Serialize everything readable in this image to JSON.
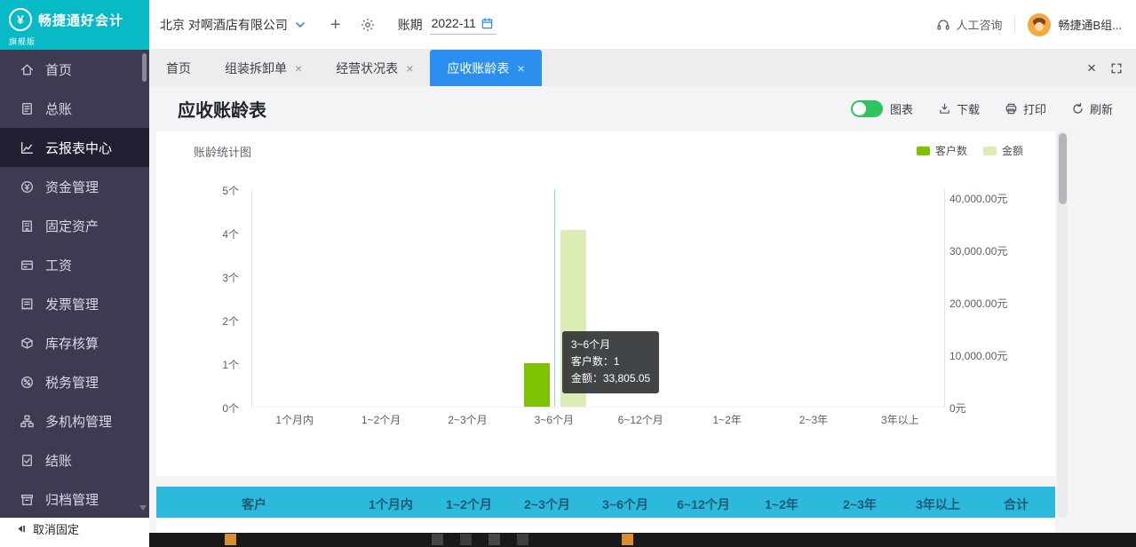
{
  "icons": {
    "close": "×",
    "plus_sign": "+",
    "yuan": "¥"
  },
  "colors": {
    "brand_teal": "#08b9c6",
    "accent_blue": "#2b8ff0",
    "toggle_green": "#2ec45e",
    "table_header_cyan": "#2db9dc",
    "sidebar_bg": "#3d3b52"
  },
  "header": {
    "logo_title": "畅捷通好会计",
    "logo_badge": "旗舰版",
    "company": "北京 对啊酒店有限公司",
    "period_label": "账期",
    "period_value": "2022-11",
    "support_label": "人工咨询",
    "user_name": "畅捷通B组..."
  },
  "sidebar": {
    "items": [
      {
        "label": "首页",
        "icon": "home-icon"
      },
      {
        "label": "总账",
        "icon": "ledger-icon"
      },
      {
        "label": "云报表中心",
        "icon": "cloud-report-icon",
        "active": true
      },
      {
        "label": "资金管理",
        "icon": "funds-icon"
      },
      {
        "label": "固定资产",
        "icon": "fixed-asset-icon"
      },
      {
        "label": "工资",
        "icon": "salary-icon"
      },
      {
        "label": "发票管理",
        "icon": "invoice-icon"
      },
      {
        "label": "库存核算",
        "icon": "inventory-icon"
      },
      {
        "label": "税务管理",
        "icon": "tax-icon"
      },
      {
        "label": "多机构管理",
        "icon": "multi-org-icon"
      },
      {
        "label": "结账",
        "icon": "closing-icon"
      },
      {
        "label": "归档管理",
        "icon": "archive-icon"
      }
    ],
    "unpin_label": "取消固定"
  },
  "tabs": [
    {
      "label": "首页",
      "closable": false,
      "active": false
    },
    {
      "label": "组装拆卸单",
      "closable": true,
      "active": false
    },
    {
      "label": "经营状况表",
      "closable": true,
      "active": false
    },
    {
      "label": "应收账龄表",
      "closable": true,
      "active": true
    }
  ],
  "toolbar": {
    "page_title": "应收账龄表",
    "view_toggle_label": "图表",
    "download_label": "下载",
    "print_label": "打印",
    "refresh_label": "刷新"
  },
  "chart_data": {
    "type": "bar",
    "title": "账龄统计图",
    "categories": [
      "1个月内",
      "1~2个月",
      "2~3个月",
      "3~6个月",
      "6~12个月",
      "1~2年",
      "2~3年",
      "3年以上"
    ],
    "series": [
      {
        "name": "客户数",
        "color": "#7ec301",
        "axis": "left",
        "values": [
          0,
          0,
          0,
          1,
          0,
          0,
          0,
          0
        ]
      },
      {
        "name": "金额",
        "color": "#dcecb5",
        "axis": "right",
        "values": [
          0,
          0,
          0,
          33805.05,
          0,
          0,
          0,
          0
        ]
      }
    ],
    "left_axis": {
      "max": 5,
      "ticks": [
        "5个",
        "4个",
        "3个",
        "2个",
        "1个",
        "0个"
      ]
    },
    "right_axis": {
      "max": 40000,
      "ticks": [
        "40,000.00元",
        "30,000.00元",
        "20,000.00元",
        "10,000.00元",
        "0元"
      ]
    },
    "legend_position": "top-right",
    "grid": false,
    "tooltip": {
      "category_index": 3,
      "title": "3~6个月",
      "lines": [
        "客户数：1",
        "金额：33,805.05"
      ]
    }
  },
  "table": {
    "headers": [
      "客户",
      "1个月内",
      "1~2个月",
      "2~3个月",
      "3~6个月",
      "6~12个月",
      "1~2年",
      "2~3年",
      "3年以上",
      "合计"
    ]
  }
}
